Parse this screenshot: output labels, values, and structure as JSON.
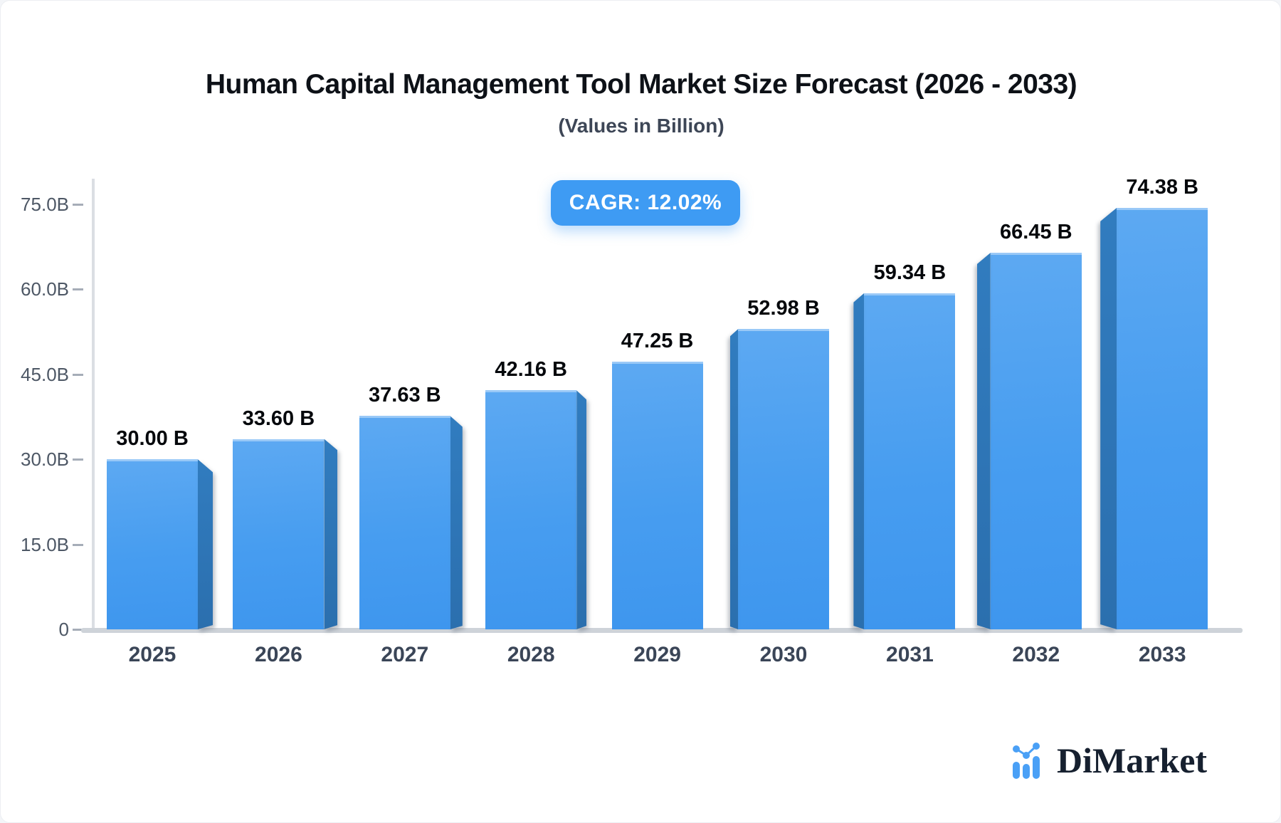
{
  "header": {
    "title": "Human Capital Management Tool Market Size Forecast (2026 - 2033)",
    "subtitle": "(Values in Billion)"
  },
  "badge": {
    "label": "CAGR: 12.02%",
    "color": "#3e9bf3"
  },
  "chart_data": {
    "type": "bar",
    "title": "Human Capital Management Tool Market Size Forecast (2026 - 2033)",
    "subtitle": "(Values in Billion)",
    "cagr": "12.02%",
    "categories": [
      "2025",
      "2026",
      "2027",
      "2028",
      "2029",
      "2030",
      "2031",
      "2032",
      "2033"
    ],
    "values": [
      30.0,
      33.6,
      37.63,
      42.16,
      47.25,
      52.98,
      59.34,
      66.45,
      74.38
    ],
    "value_labels": [
      "30.00 B",
      "33.60 B",
      "37.63 B",
      "42.16 B",
      "47.25 B",
      "52.98 B",
      "59.34 B",
      "66.45 B",
      "74.38 B"
    ],
    "ylim": [
      0,
      75
    ],
    "yticks": {
      "values": [
        0,
        15,
        30,
        45,
        60,
        75
      ],
      "labels": [
        "0",
        "15.0B",
        "30.0B",
        "45.0B",
        "60.0B",
        "75.0B"
      ]
    },
    "grid": false,
    "legend": "none",
    "xlabel": "",
    "ylabel": "",
    "bar_color": "#459cf0",
    "bar_side_color": "#2e76b7",
    "style": "pseudo-3d bars, side panels face away from center bar"
  },
  "logo": {
    "text": "DiMarket",
    "icon": "mini-bar-line-chart",
    "icon_color": "#4aa0f6",
    "text_color": "#16202f"
  }
}
